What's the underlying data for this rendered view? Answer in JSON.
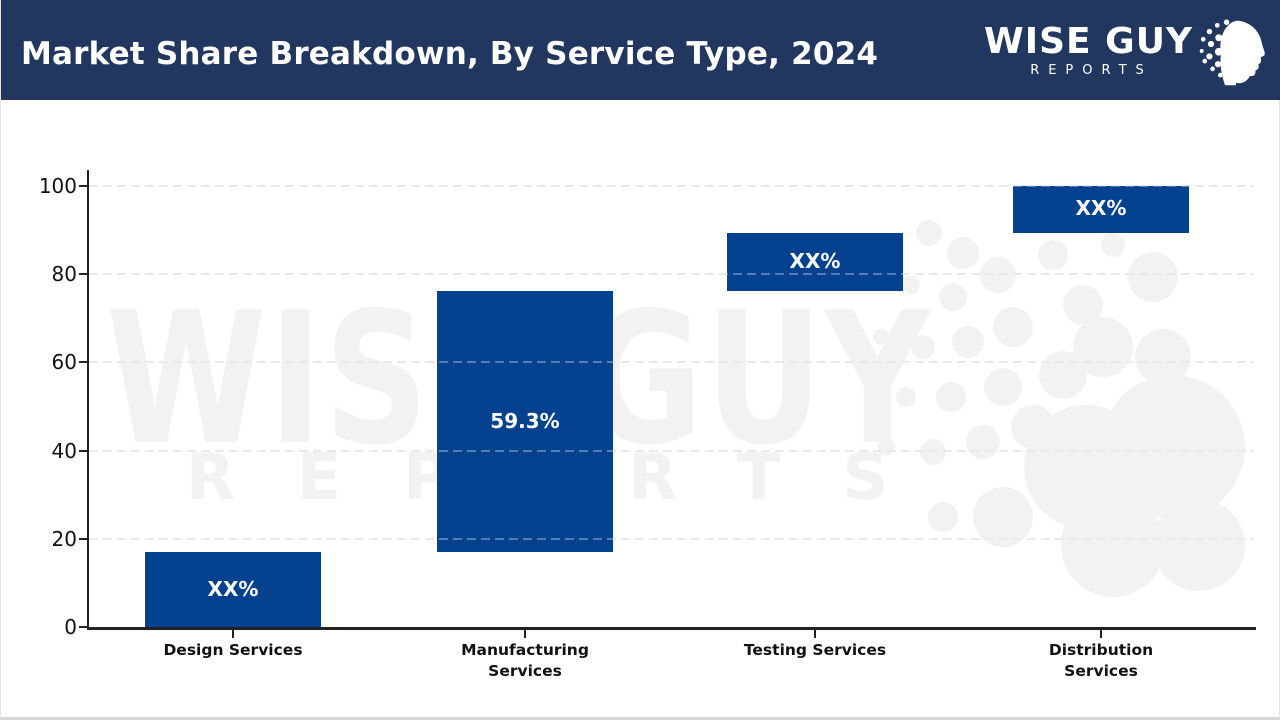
{
  "header": {
    "bg_color": "#21375F",
    "title": "Market Share Breakdown, By Service Type, 2024",
    "logo": {
      "line1": "WISE GUY",
      "line2": "REPORTS"
    }
  },
  "watermark": {
    "line1": "WISE GUY",
    "line2": "REPORTS"
  },
  "colors": {
    "header_navy": "#21375F",
    "bar_blue": "#04418F",
    "grid_gray": "#dfdfdf",
    "watermark_gray": "#f2f2f2",
    "axis_black": "#222222"
  },
  "chart_data": {
    "type": "bar",
    "subtype": "waterfall",
    "title": "Market Share Breakdown, By Service Type, 2024",
    "categories": [
      "Design Services",
      "Manufacturing Services",
      "Testing Services",
      "Distribution Services"
    ],
    "category_lines": [
      [
        "Design Services"
      ],
      [
        "Manufacturing",
        "Services"
      ],
      [
        "Testing Services"
      ],
      [
        "Distribution",
        "Services"
      ]
    ],
    "bars": [
      {
        "label": "XX%",
        "start": 0,
        "end": 16.9,
        "value_shown": "XX%"
      },
      {
        "label": "59.3%",
        "start": 16.9,
        "end": 76.2,
        "value_shown": "59.3%"
      },
      {
        "label": "XX%",
        "start": 76.2,
        "end": 89.4,
        "value_shown": "XX%"
      },
      {
        "label": "XX%",
        "start": 89.4,
        "end": 100,
        "value_shown": "XX%"
      }
    ],
    "yticks": [
      0,
      20,
      40,
      60,
      80,
      100
    ],
    "ylim": [
      0,
      105
    ],
    "xlabel": "",
    "ylabel": "",
    "bar_color": "#04418F",
    "grid": "dashed-horizontal",
    "legend": "none"
  }
}
